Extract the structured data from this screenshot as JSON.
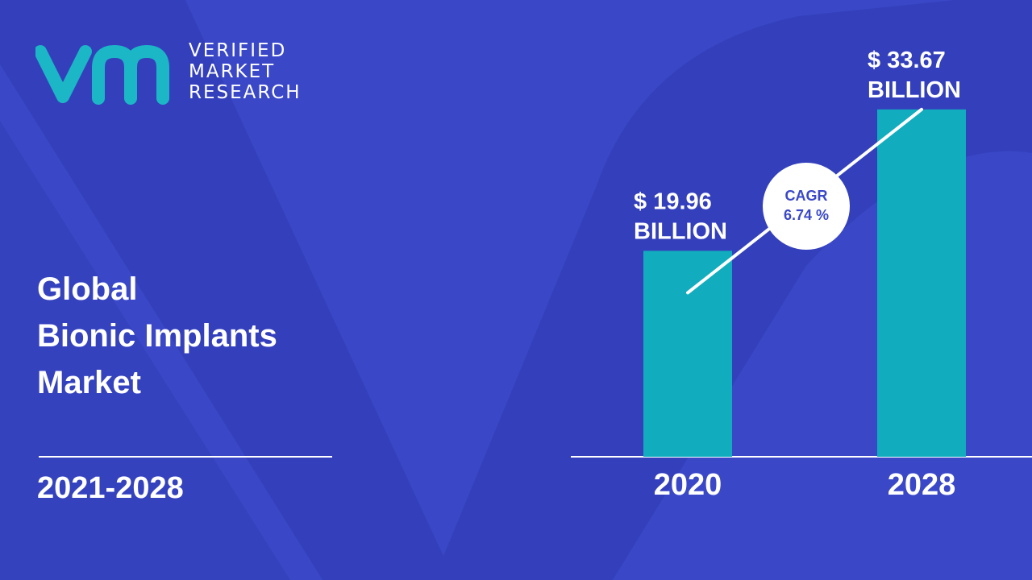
{
  "brand": {
    "lines": [
      "VERIFIED",
      "MARKET",
      "RESEARCH"
    ],
    "monogram": "vmr",
    "colors": {
      "monogram": "#1bb7c6",
      "text": "#ffffff"
    }
  },
  "title": {
    "lines": [
      "Global",
      "Bionic Implants",
      "Market"
    ]
  },
  "period": "2021-2028",
  "colors": {
    "background": "#3a48c8",
    "background_shape": "#2f3bb0",
    "bar": "#11adbe",
    "text": "#ffffff",
    "cagr_text": "#3a48c8"
  },
  "chart_data": {
    "type": "bar",
    "categories": [
      "2020",
      "2028"
    ],
    "values": [
      19.96,
      33.67
    ],
    "data_labels": [
      [
        "$ 19.96",
        "BILLION"
      ],
      [
        "$ 33.67",
        "BILLION"
      ]
    ],
    "title": "",
    "xlabel": "",
    "ylabel": "",
    "unit": "$ Billion",
    "ylim": [
      0,
      36
    ],
    "grid": false,
    "annotation": {
      "label": "CAGR",
      "value": "6.74 %"
    }
  }
}
